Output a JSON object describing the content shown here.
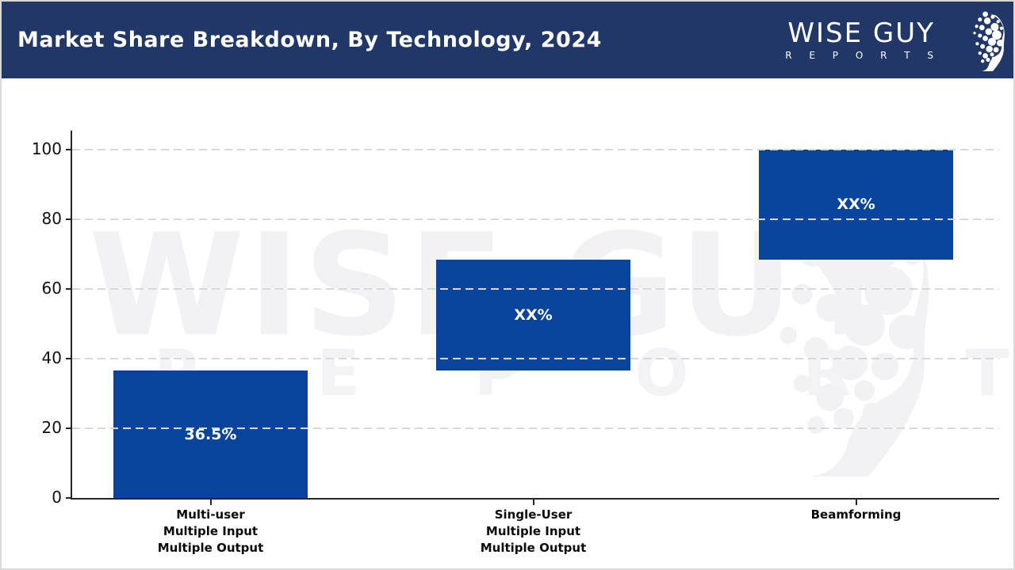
{
  "header": {
    "title": "Market Share Breakdown, By Technology, 2024",
    "bg_color": "#203767",
    "logo": {
      "name": "Wise Guy Reports logo",
      "line1": "WISE GUY",
      "line2": "R E P O R T S"
    }
  },
  "watermark": {
    "line1": "WISE GUY",
    "line2": "R E P O R T S"
  },
  "chart_data": {
    "type": "bar",
    "variant": "floating_segment_waterfall",
    "title": "Market Share Breakdown, By Technology, 2024",
    "categories": [
      [
        "Multi-user",
        "Multiple Input",
        "Multiple Output"
      ],
      [
        "Single-User",
        "Multiple Input",
        "Multiple Output"
      ],
      [
        "Beamforming"
      ]
    ],
    "segments": [
      {
        "category_index": 0,
        "start": 0,
        "end": 36.5,
        "label": "36.5%"
      },
      {
        "category_index": 1,
        "start": 36.5,
        "end": 68.5,
        "label": "XX%"
      },
      {
        "category_index": 2,
        "start": 68.5,
        "end": 100,
        "label": "XX%"
      }
    ],
    "xlabel": "",
    "ylabel": "",
    "yticks": [
      0,
      20,
      40,
      60,
      80,
      100
    ],
    "ylim": [
      0,
      105
    ],
    "grid": {
      "horizontal": true,
      "style": "dashed",
      "drawn_over_bars": true,
      "color": "#d7d7d7"
    },
    "legend": "none",
    "colors": {
      "bar": "#07449a",
      "bar_label": "#ffffff",
      "axis": "#262626",
      "tick_label": "#111111",
      "watermark": "#f2f2f4"
    }
  }
}
